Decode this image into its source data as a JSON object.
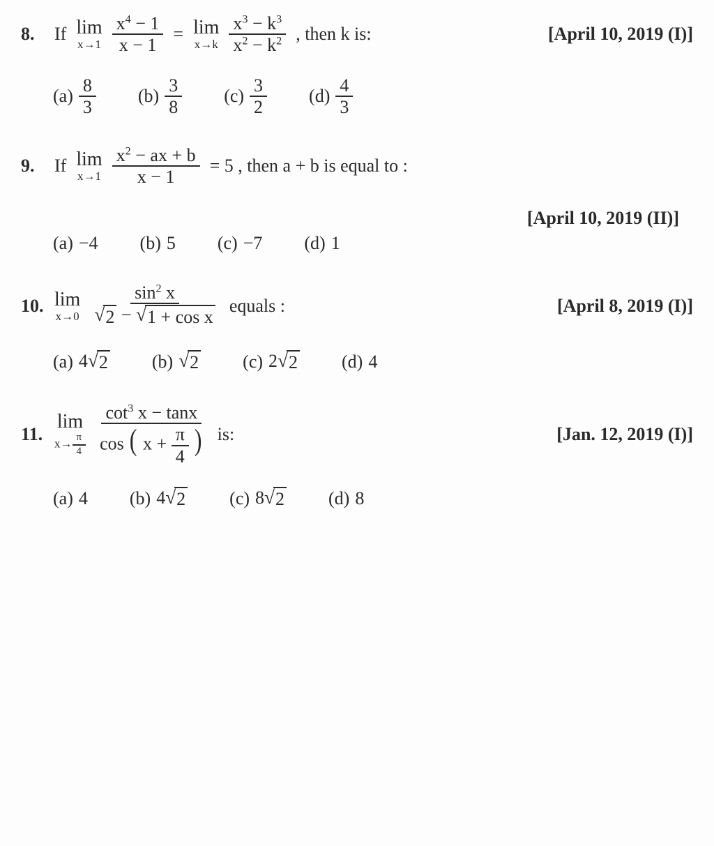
{
  "text_color": "#2a2a2a",
  "background_color": "#fdfdfd",
  "font_family": "Times New Roman",
  "q8": {
    "num": "8.",
    "prefix": "If",
    "lim1_top": "lim",
    "lim1_bot": "x→1",
    "frac1_num_a": "x",
    "frac1_num_pow": "4",
    "frac1_num_b": " − 1",
    "frac1_den": "x − 1",
    "eq": "=",
    "lim2_top": "lim",
    "lim2_bot": "x→k",
    "frac2_num_a": "x",
    "frac2_num_p1": "3",
    "frac2_num_mid": " − k",
    "frac2_num_p2": "3",
    "frac2_den_a": "x",
    "frac2_den_p1": "2",
    "frac2_den_mid": " − k",
    "frac2_den_p2": "2",
    "suffix": ", then k is:",
    "tag": "[April 10, 2019 (I)]",
    "opts": {
      "a_lbl": "(a)",
      "a_num": "8",
      "a_den": "3",
      "b_lbl": "(b)",
      "b_num": "3",
      "b_den": "8",
      "c_lbl": "(c)",
      "c_num": "3",
      "c_den": "2",
      "d_lbl": "(d)",
      "d_num": "4",
      "d_den": "3"
    }
  },
  "q9": {
    "num": "9.",
    "prefix": "If",
    "lim_top": "lim",
    "lim_bot": "x→1",
    "frac_num_a": "x",
    "frac_num_pow": "2",
    "frac_num_b": " − ax + b",
    "frac_den": "x − 1",
    "mid": "= 5 , then a + b is equal to :",
    "tag": "[April 10, 2019 (II)]",
    "opts": {
      "a_lbl": "(a)",
      "a_val": "−4",
      "b_lbl": "(b)",
      "b_val": "5",
      "c_lbl": "(c)",
      "c_val": "−7",
      "d_lbl": "(d)",
      "d_val": "1"
    }
  },
  "q10": {
    "num": "10.",
    "lim_top": "lim",
    "lim_bot": "x→0",
    "frac_num_a": "sin",
    "frac_num_pow": "2",
    "frac_num_b": " x",
    "den_sqrt1": "2",
    "den_minus": " − ",
    "den_sqrt2": "1 + cos x",
    "suffix": " equals :",
    "tag": "[April 8, 2019 (I)]",
    "opts": {
      "a_lbl": "(a)",
      "a_pre": "4",
      "a_sqrt": "2",
      "b_lbl": "(b)",
      "b_sqrt": "2",
      "c_lbl": "(c)",
      "c_pre": "2",
      "c_sqrt": "2",
      "d_lbl": "(d)",
      "d_val": "4"
    }
  },
  "q11": {
    "num": "11.",
    "lim_top": "lim",
    "lim_bot_a": "x→",
    "lim_bot_num": "π",
    "lim_bot_den": "4",
    "frac_num_a": "cot",
    "frac_num_pow": "3",
    "frac_num_b": " x − tanx",
    "den_pre": "cos",
    "den_in_a": "x + ",
    "den_in_num": "π",
    "den_in_den": "4",
    "suffix": " is:",
    "tag": "[Jan. 12, 2019 (I)]",
    "opts": {
      "a_lbl": "(a)",
      "a_val": "4",
      "b_lbl": "(b)",
      "b_pre": "4",
      "b_sqrt": "2",
      "c_lbl": "(c)",
      "c_pre": "8",
      "c_sqrt": "2",
      "d_lbl": "(d)",
      "d_val": "8"
    }
  }
}
